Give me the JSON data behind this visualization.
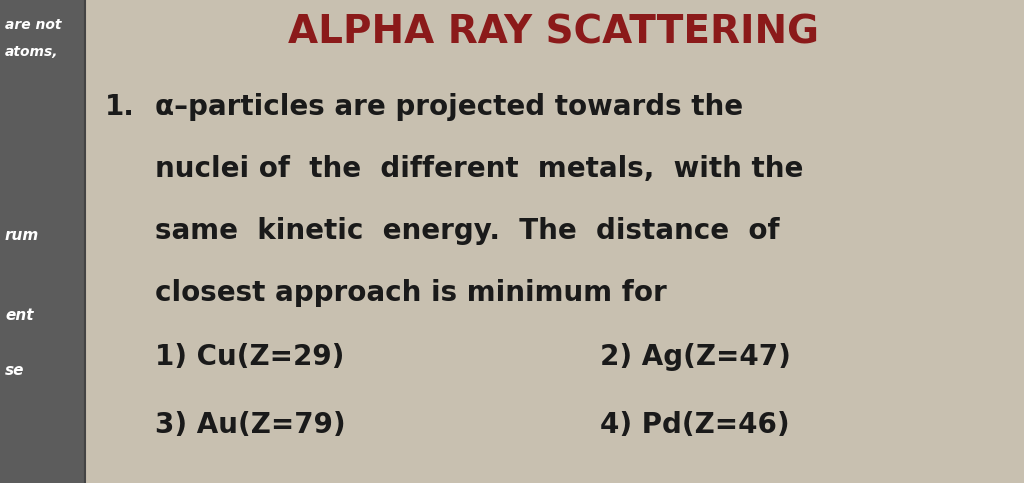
{
  "title": "ALPHA RAY SCATTERING",
  "title_color": "#8B1A1A",
  "title_fontsize": 28,
  "bg_color": "#C8C0B0",
  "left_panel_color": "#5C5C5C",
  "left_panel_text": [
    "are not",
    "atoms,",
    "",
    "rum",
    "ent",
    "se"
  ],
  "question_number": "1.",
  "question_text_line1": "α–particles are projected towards the",
  "question_text_line2": "nuclei of  the  different  metals,  with the",
  "question_text_line3": "same  kinetic  energy.  The  distance  of",
  "question_text_line4": "closest approach is minimum for",
  "option1": "1) Cu(Z=29)",
  "option2": "2) Ag(Z=47)",
  "option3": "3) Au(Z=79)",
  "option4": "4) Pd(Z=46)",
  "text_color": "#1A1A1A",
  "body_fontsize": 20,
  "option_fontsize": 20
}
